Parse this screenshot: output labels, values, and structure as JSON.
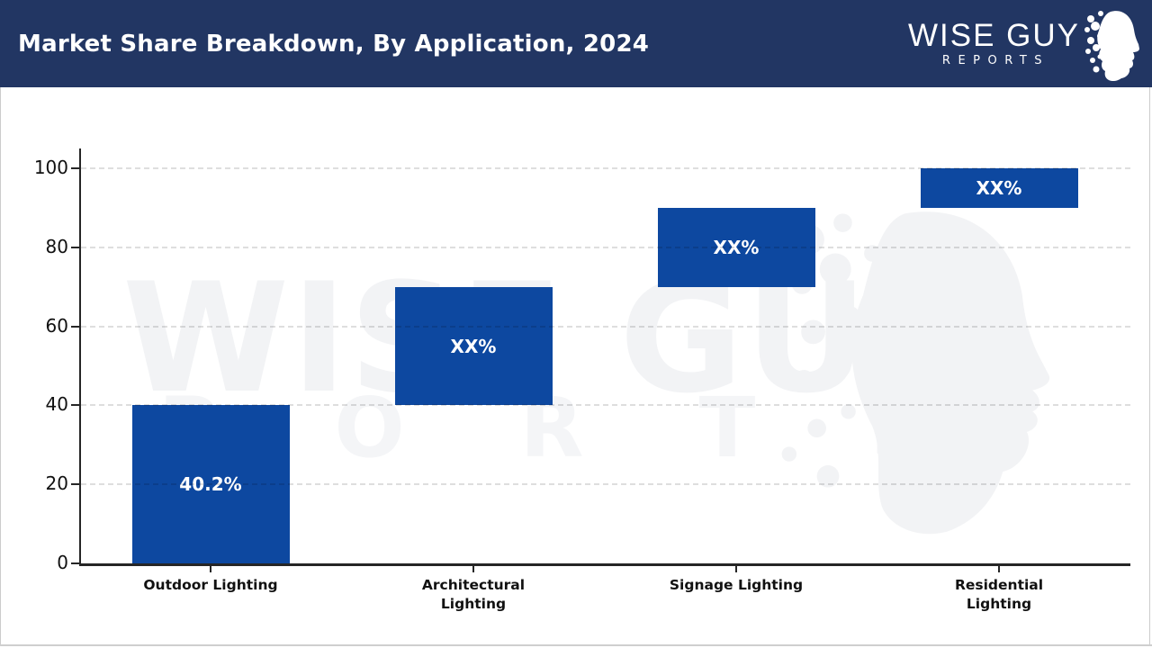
{
  "header": {
    "title": "Market Share Breakdown, By Application, 2024",
    "logo": {
      "line1": "WISE GUY",
      "line2": "REPORTS"
    }
  },
  "watermark": {
    "line1": "WISE GU",
    "line2": "P O R T S"
  },
  "colors": {
    "header_bg": "#223663",
    "bar": "#0D48A0",
    "axis": "#262626",
    "grid": "#d9d9d9",
    "watermark": "#f2f3f5",
    "frame": "#cccccc"
  },
  "chart_data": {
    "type": "bar",
    "subtype": "waterfall",
    "title": "Market Share Breakdown, By Application, 2024",
    "categories": [
      "Outdoor Lighting",
      "Architectural Lighting",
      "Signage Lighting",
      "Residential Lighting"
    ],
    "categories_wrapped": [
      [
        "Outdoor Lighting"
      ],
      [
        "Architectural",
        "Lighting"
      ],
      [
        "Signage Lighting"
      ],
      [
        "Residential",
        "Lighting"
      ]
    ],
    "segments": [
      {
        "start": 0,
        "end": 40.2,
        "label": "40.2%"
      },
      {
        "start": 40,
        "end": 70,
        "label": "XX%"
      },
      {
        "start": 70,
        "end": 90,
        "label": "XX%"
      },
      {
        "start": 90,
        "end": 100,
        "label": "XX%"
      }
    ],
    "yticks": [
      0,
      20,
      40,
      60,
      80,
      100
    ],
    "ylim": [
      0,
      105
    ],
    "xlabel": "",
    "ylabel": "",
    "grid": "dashed-horizontal",
    "legend": "none",
    "bar_color": "#0D48A0"
  }
}
